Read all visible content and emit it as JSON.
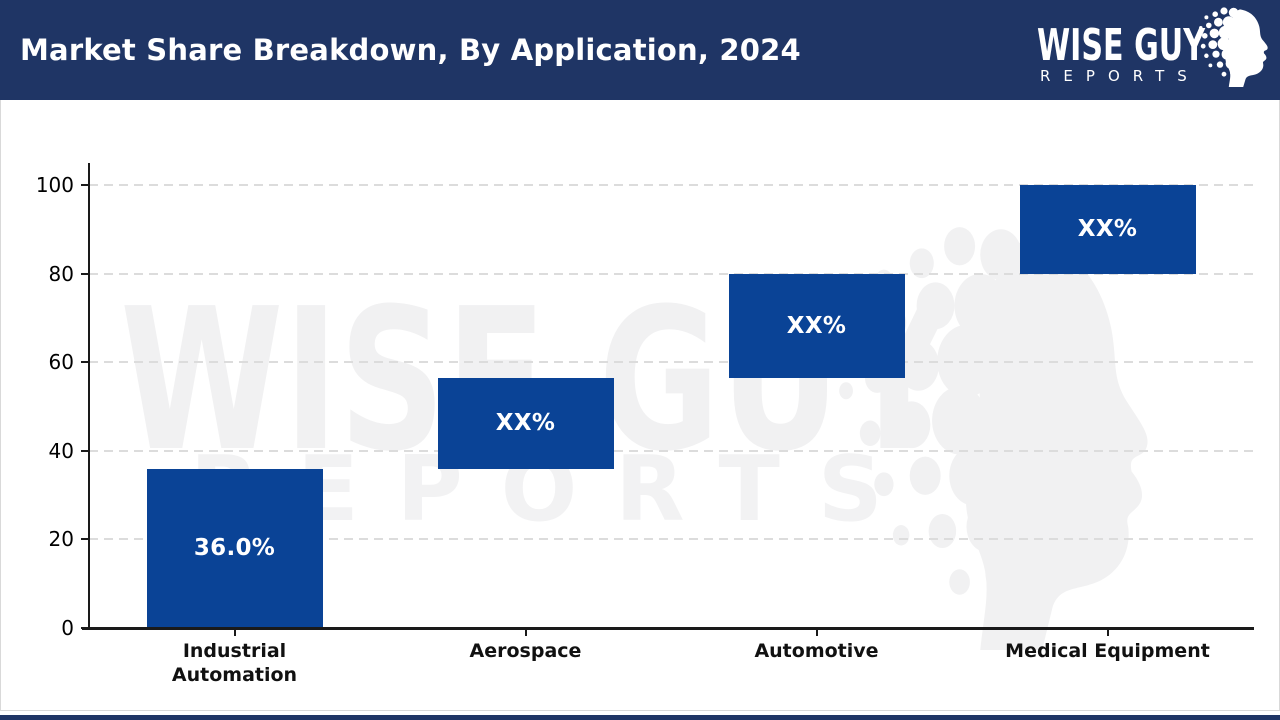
{
  "header": {
    "title": "Market Share Breakdown, By Application, 2024",
    "logo": {
      "line1": "WISE GUY",
      "line2": "REPORTS"
    }
  },
  "watermark": {
    "line1": "WISE GUY",
    "line2": "REPORTS"
  },
  "footer": {},
  "chart_data": {
    "type": "bar",
    "subtype": "floating-waterfall",
    "title": "Market Share Breakdown, By Application, 2024",
    "categories": [
      "Industrial\nAutomation",
      "Aerospace",
      "Automotive",
      "Medical Equipment"
    ],
    "bars": [
      {
        "category": "Industrial\nAutomation",
        "start": 0,
        "end": 36,
        "label": "36.0%"
      },
      {
        "category": "Aerospace",
        "start": 36,
        "end": 56.5,
        "label": "XX%"
      },
      {
        "category": "Automotive",
        "start": 56.5,
        "end": 80,
        "label": "XX%"
      },
      {
        "category": "Medical Equipment",
        "start": 80,
        "end": 100,
        "label": "XX%"
      }
    ],
    "xlabel": "",
    "ylabel": "",
    "ylim": [
      0,
      105
    ],
    "yticks": [
      0,
      20,
      40,
      60,
      80,
      100
    ],
    "grid": "dashed-horizontal",
    "legend": null,
    "bar_color": "#0a4396",
    "bar_label_color": "#ffffff",
    "axis_color": "#1a1a1a",
    "gridline_color": "#dcdcdc",
    "header_color": "#1f3565",
    "watermark_color": "#f1f1f2"
  }
}
